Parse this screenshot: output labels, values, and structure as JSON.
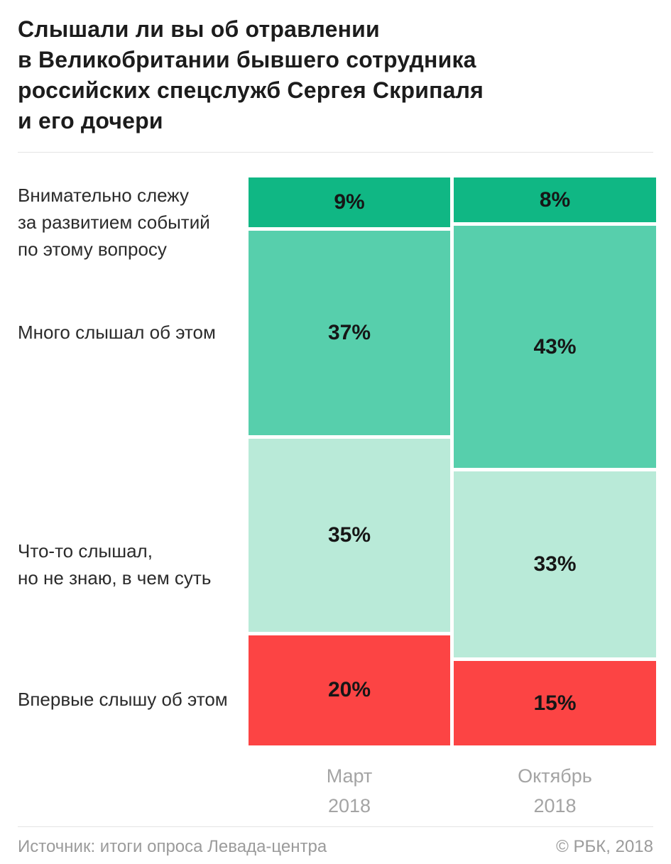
{
  "header": {
    "title_lines": [
      "Слышали ли вы об отравлении",
      "в Великобритании бывшего сотрудника",
      "российских спецслужб Сергея Скрипаля",
      "и его дочери"
    ]
  },
  "chart_data": {
    "type": "bar",
    "subtype": "stacked-column",
    "title": "Слышали ли вы об отравлении в Великобритании бывшего сотрудника российских спецслужб Сергея Скрипаля и его дочери",
    "categories": [
      "Март 2018",
      "Октябрь 2018"
    ],
    "category_keys": [
      "march-2018",
      "october-2018"
    ],
    "category_lines": [
      [
        "Март",
        "2018"
      ],
      [
        "Октябрь",
        "2018"
      ]
    ],
    "series": [
      {
        "key": "follow-closely",
        "name": "Внимательно слежу за развитием событий по этому вопросу",
        "label_lines": [
          "Внимательно слежу",
          "за развитием событий",
          "по этому вопросу"
        ],
        "values": [
          9,
          8
        ],
        "color": "#10b784"
      },
      {
        "key": "heard-a-lot",
        "name": "Много слышал об этом",
        "label_lines": [
          "Много слышал об этом"
        ],
        "values": [
          37,
          43
        ],
        "color": "#57cfac"
      },
      {
        "key": "heard-something",
        "name": "Что-то слышал, но не знаю, в чем суть",
        "label_lines": [
          "Что-то слышал,",
          "но не знаю, в чем суть"
        ],
        "values": [
          35,
          33
        ],
        "color": "#b9ead8"
      },
      {
        "key": "first-time",
        "name": "Впервые слышу об этом",
        "label_lines": [
          "Впервые слышу об этом"
        ],
        "values": [
          20,
          15
        ],
        "color": "#fc4444"
      }
    ],
    "value_suffix": "%",
    "value_label_color": "#161616",
    "grid": false,
    "legend_position": "left-row-labels",
    "orientation": "vertical-stacked",
    "unit": "percent"
  },
  "footer": {
    "source": "Источник: итоги опроса Левада-центра",
    "copyright": "© РБК, 2018"
  }
}
